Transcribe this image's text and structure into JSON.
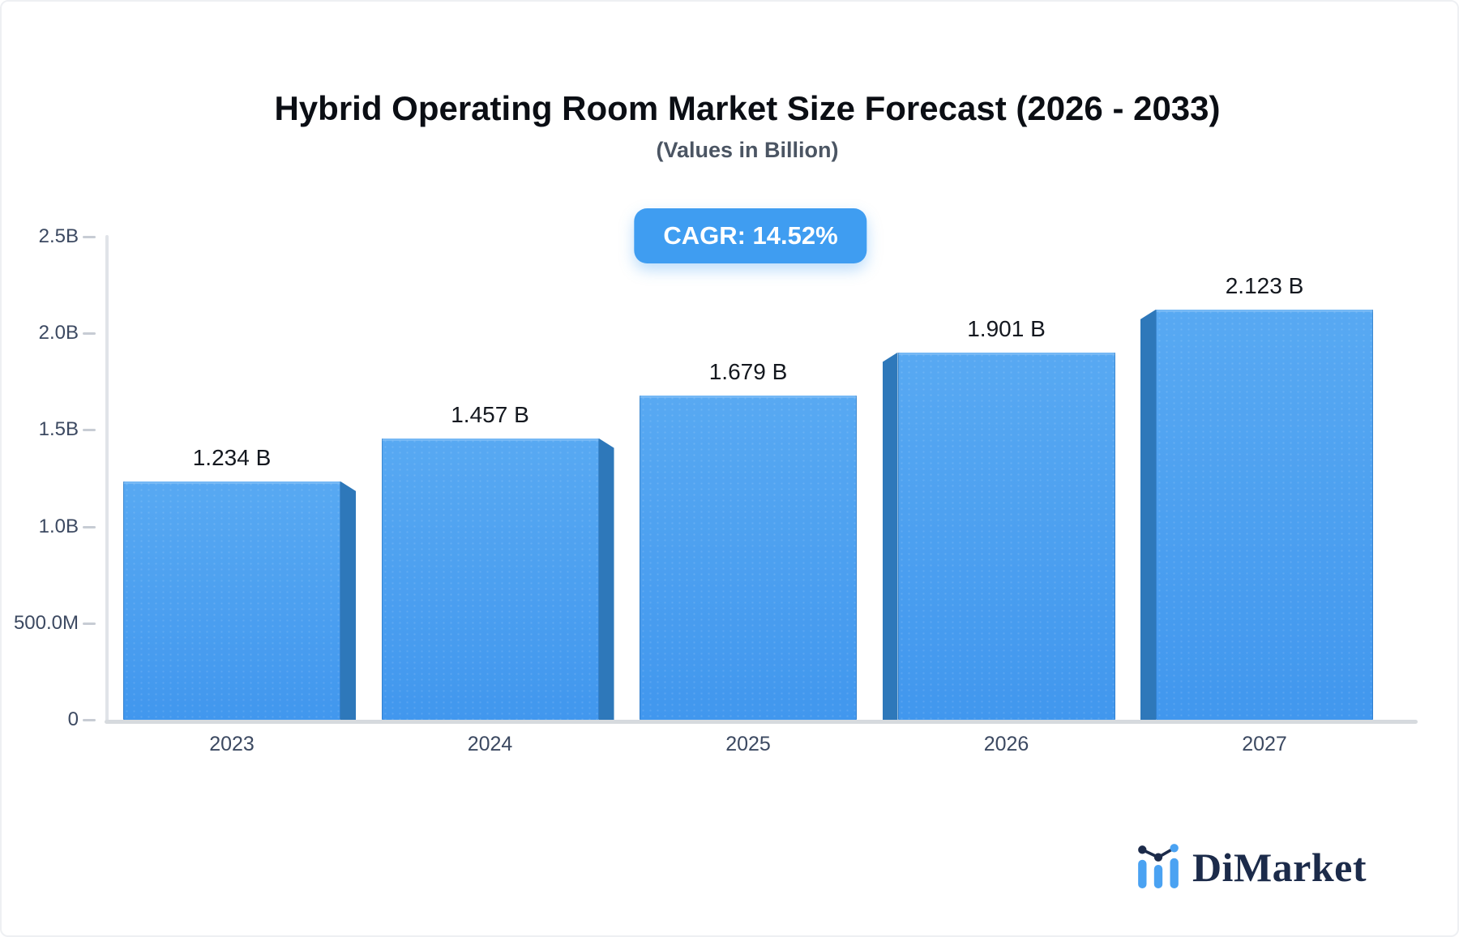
{
  "header": {
    "title": "Hybrid Operating Room Market Size Forecast (2026 - 2033)",
    "subtitle": "(Values in Billion)",
    "badge": "CAGR: 14.52%"
  },
  "chart_data": {
    "type": "bar",
    "title": "Hybrid Operating Room Market Size Forecast (2026 - 2033)",
    "subtitle": "(Values in Billion)",
    "cagr_label": "CAGR: 14.52%",
    "categories": [
      "2023",
      "2024",
      "2025",
      "2026",
      "2027"
    ],
    "values": [
      1.234,
      1.457,
      1.679,
      1.901,
      2.123
    ],
    "value_labels": [
      "1.234 B",
      "1.457 B",
      "1.679 B",
      "1.901 B",
      "2.123 B"
    ],
    "unit": "Billion USD",
    "ylim": [
      0,
      2.5
    ],
    "yticks": [
      {
        "value": 0,
        "label": "0"
      },
      {
        "value": 0.5,
        "label": "500.0M"
      },
      {
        "value": 1.0,
        "label": "1.0B"
      },
      {
        "value": 1.5,
        "label": "1.5B"
      },
      {
        "value": 2.0,
        "label": "2.0B"
      },
      {
        "value": 2.5,
        "label": "2.5B"
      }
    ],
    "grid": false,
    "legend": false,
    "bar_3d_sides": [
      "right",
      "right",
      "none",
      "left",
      "left"
    ]
  },
  "colors": {
    "bar_top": "#58a9f2",
    "bar_bottom": "#4197ee",
    "bar_top_highlight": "#75b8f5",
    "bar_edge": "rgba(30,100,168,0.45)",
    "bar_side": "#2e78ba",
    "badge_bg": "#3f9df1",
    "axis_line": "#e0e3e8",
    "baseline": "#d6dade",
    "tick_mark": "#c7ccd4"
  },
  "logo": {
    "text": "DiMarket",
    "icon": "bar-chart-logo-icon",
    "navy": "#1c2b4a",
    "blue": "#4aa2f2"
  }
}
